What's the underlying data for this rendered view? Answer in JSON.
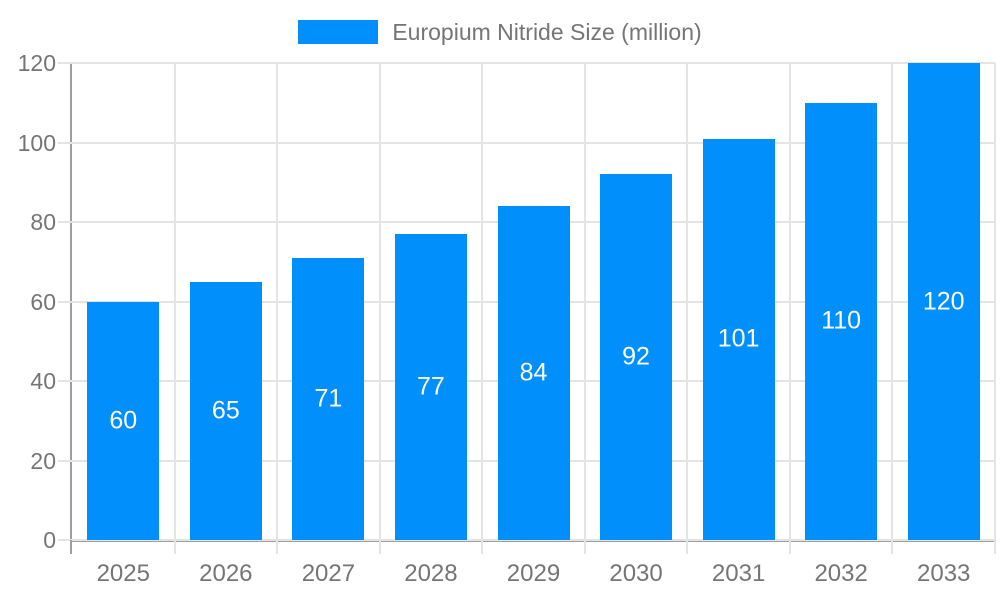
{
  "chart_data": {
    "type": "bar",
    "title": "Europium Nitride Size (million)",
    "series_name": "Europium Nitride Size (million)",
    "legend_position": "top-center",
    "categories": [
      "2025",
      "2026",
      "2027",
      "2028",
      "2029",
      "2030",
      "2031",
      "2032",
      "2033"
    ],
    "values": [
      60,
      65,
      71,
      77,
      84,
      92,
      101,
      110,
      120
    ],
    "value_labels": [
      "60",
      "65",
      "71",
      "77",
      "84",
      "92",
      "101",
      "110",
      "120"
    ],
    "xlabel": "",
    "ylabel": "",
    "ylim": [
      0,
      120
    ],
    "yticks": [
      0,
      20,
      40,
      60,
      80,
      100,
      120
    ],
    "ytick_labels": [
      "0",
      "20",
      "40",
      "60",
      "80",
      "100",
      "120"
    ],
    "grid": true,
    "colors": {
      "bar": "#008FFB",
      "value_label": "#ffffff",
      "axis_text": "#757575",
      "axis_line": "#9e9e9e",
      "gridline": "#e4e4e4",
      "background": "#ffffff"
    }
  }
}
